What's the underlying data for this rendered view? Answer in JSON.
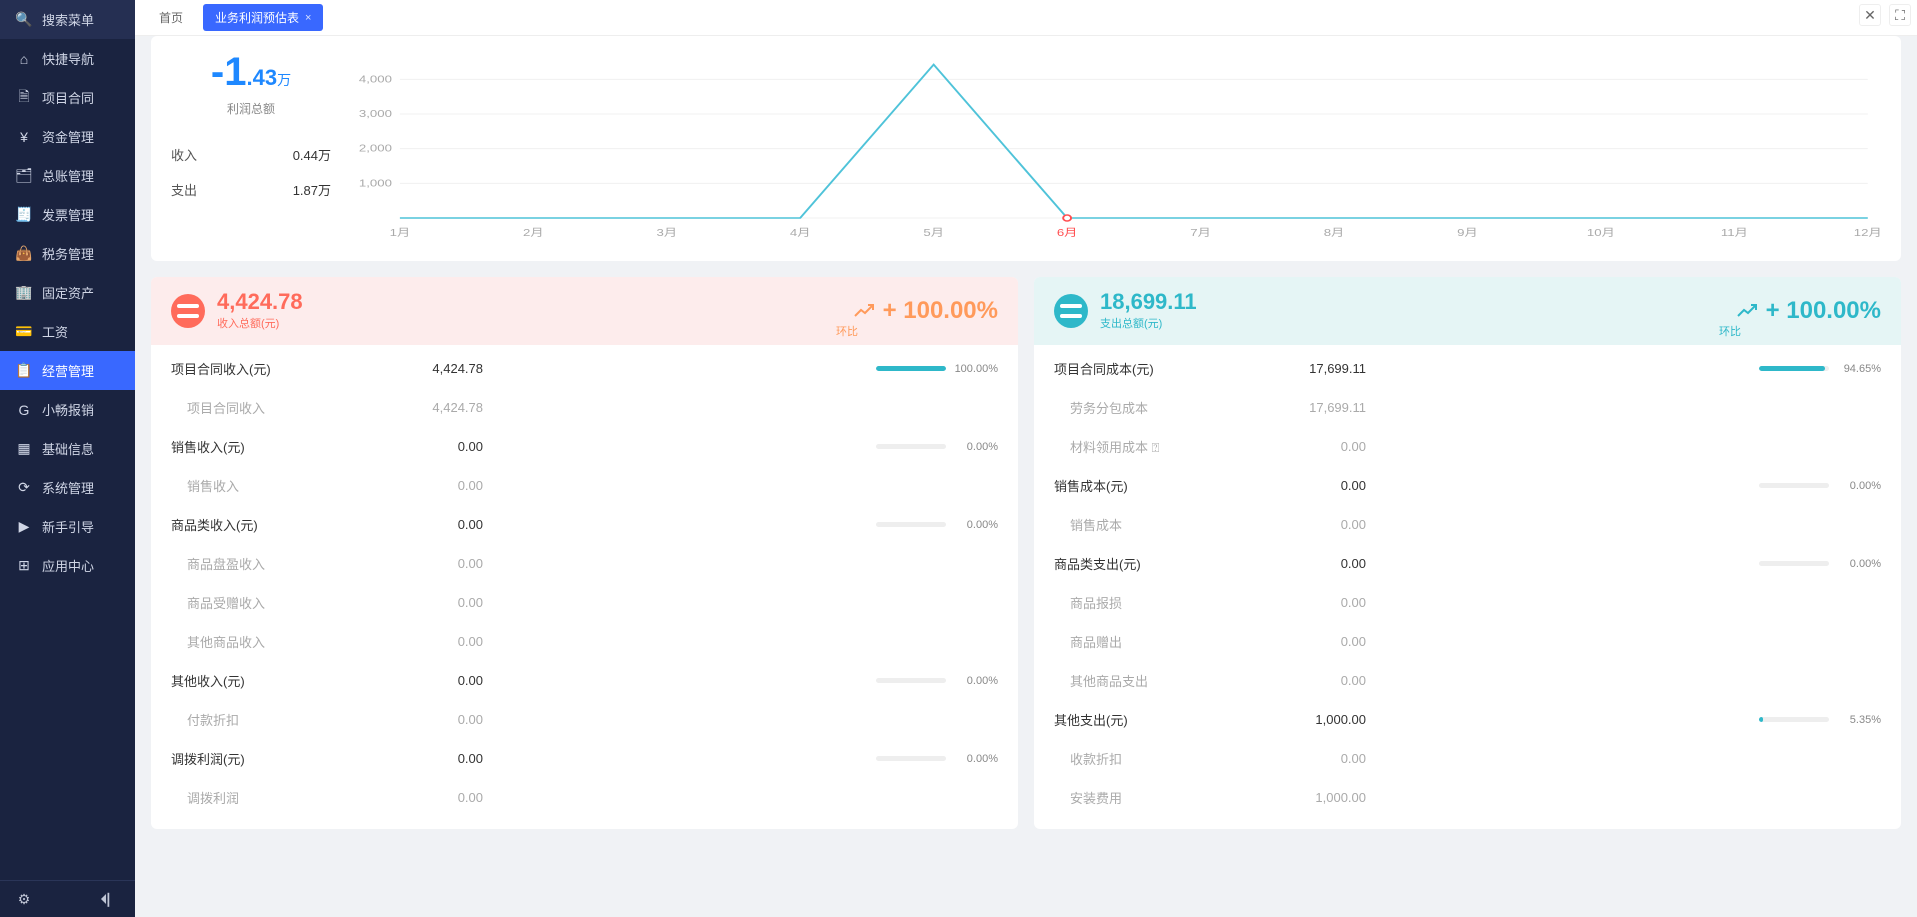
{
  "sidebar": {
    "items": [
      {
        "icon": "🔍",
        "label": "搜索菜单"
      },
      {
        "icon": "⌂",
        "label": "快捷导航"
      },
      {
        "icon": "🗎",
        "label": "项目合同"
      },
      {
        "icon": "¥",
        "label": "资金管理"
      },
      {
        "icon": "🗂",
        "label": "总账管理"
      },
      {
        "icon": "🧾",
        "label": "发票管理"
      },
      {
        "icon": "👜",
        "label": "税务管理"
      },
      {
        "icon": "🏢",
        "label": "固定资产"
      },
      {
        "icon": "💳",
        "label": "工资"
      },
      {
        "icon": "📋",
        "label": "经营管理"
      },
      {
        "icon": "G",
        "label": "小畅报销"
      },
      {
        "icon": "▦",
        "label": "基础信息"
      },
      {
        "icon": "⟳",
        "label": "系统管理"
      },
      {
        "icon": "▶",
        "label": "新手引导"
      },
      {
        "icon": "⊞",
        "label": "应用中心"
      }
    ],
    "activeIndex": 9
  },
  "tabs": {
    "items": [
      {
        "label": "首页",
        "closable": false
      },
      {
        "label": "业务利润预估表",
        "closable": true
      }
    ],
    "activeIndex": 1
  },
  "summary": {
    "profit_int": "-1",
    "profit_dec": ".43",
    "profit_unit": "万",
    "profit_label": "利润总额",
    "income_label": "收入",
    "income_value": "0.44万",
    "expense_label": "支出",
    "expense_value": "1.87万"
  },
  "chart": {
    "type": "line",
    "ylim": [
      0,
      4500
    ],
    "yticks": [
      1000,
      2000,
      3000,
      4000
    ],
    "ytick_labels": [
      "1,000",
      "2,000",
      "3,000",
      "4,000"
    ],
    "xlabels": [
      "1月",
      "2月",
      "3月",
      "4月",
      "5月",
      "6月",
      "7月",
      "8月",
      "9月",
      "10月",
      "11月",
      "12月"
    ],
    "hot_x_index": 5,
    "values": [
      0,
      0,
      0,
      0,
      4424.78,
      0,
      0,
      0,
      0,
      0,
      0,
      0
    ],
    "line_color": "#4fc3d9",
    "grid_color": "#f0f0f0",
    "axis_text_color": "#aaaaaa",
    "hot_color": "#ff4d4f",
    "background": "#ffffff"
  },
  "income_panel": {
    "total": "4,424.78",
    "total_label": "收入总额(元)",
    "hb_label": "环比",
    "hb_value": "+ 100.00%",
    "accent": "#ff6b5b",
    "rows": [
      {
        "label": "项目合同收入(元)",
        "value": "4,424.78",
        "pct": 100.0,
        "pct_text": "100.00%",
        "sub": false,
        "bar": true
      },
      {
        "label": "项目合同收入",
        "value": "4,424.78",
        "sub": true,
        "bar": false
      },
      {
        "label": "销售收入(元)",
        "value": "0.00",
        "pct": 0,
        "pct_text": "0.00%",
        "sub": false,
        "bar": true
      },
      {
        "label": "销售收入",
        "value": "0.00",
        "sub": true,
        "bar": false
      },
      {
        "label": "商品类收入(元)",
        "value": "0.00",
        "pct": 0,
        "pct_text": "0.00%",
        "sub": false,
        "bar": true
      },
      {
        "label": "商品盘盈收入",
        "value": "0.00",
        "sub": true,
        "bar": false
      },
      {
        "label": "商品受赠收入",
        "value": "0.00",
        "sub": true,
        "bar": false
      },
      {
        "label": "其他商品收入",
        "value": "0.00",
        "sub": true,
        "bar": false
      },
      {
        "label": "其他收入(元)",
        "value": "0.00",
        "pct": 0,
        "pct_text": "0.00%",
        "sub": false,
        "bar": true
      },
      {
        "label": "付款折扣",
        "value": "0.00",
        "sub": true,
        "bar": false
      },
      {
        "label": "调拨利润(元)",
        "value": "0.00",
        "pct": 0,
        "pct_text": "0.00%",
        "sub": false,
        "bar": true
      },
      {
        "label": "调拨利润",
        "value": "0.00",
        "sub": true,
        "bar": false
      }
    ]
  },
  "expense_panel": {
    "total": "18,699.11",
    "total_label": "支出总额(元)",
    "hb_label": "环比",
    "hb_value": "+ 100.00%",
    "accent": "#2eb8c9",
    "rows": [
      {
        "label": "项目合同成本(元)",
        "value": "17,699.11",
        "pct": 94.65,
        "pct_text": "94.65%",
        "sub": false,
        "bar": true
      },
      {
        "label": "劳务分包成本",
        "value": "17,699.11",
        "sub": true,
        "bar": false
      },
      {
        "label": "材料领用成本 ⍰",
        "value": "0.00",
        "sub": true,
        "bar": false
      },
      {
        "label": "销售成本(元)",
        "value": "0.00",
        "pct": 0,
        "pct_text": "0.00%",
        "sub": false,
        "bar": true
      },
      {
        "label": "销售成本",
        "value": "0.00",
        "sub": true,
        "bar": false
      },
      {
        "label": "商品类支出(元)",
        "value": "0.00",
        "pct": 0,
        "pct_text": "0.00%",
        "sub": false,
        "bar": true
      },
      {
        "label": "商品报损",
        "value": "0.00",
        "sub": true,
        "bar": false
      },
      {
        "label": "商品赠出",
        "value": "0.00",
        "sub": true,
        "bar": false
      },
      {
        "label": "其他商品支出",
        "value": "0.00",
        "sub": true,
        "bar": false
      },
      {
        "label": "其他支出(元)",
        "value": "1,000.00",
        "pct": 5.35,
        "pct_text": "5.35%",
        "sub": false,
        "bar": true
      },
      {
        "label": "收款折扣",
        "value": "0.00",
        "sub": true,
        "bar": false
      },
      {
        "label": "安装费用",
        "value": "1,000.00",
        "sub": true,
        "bar": false
      }
    ]
  }
}
